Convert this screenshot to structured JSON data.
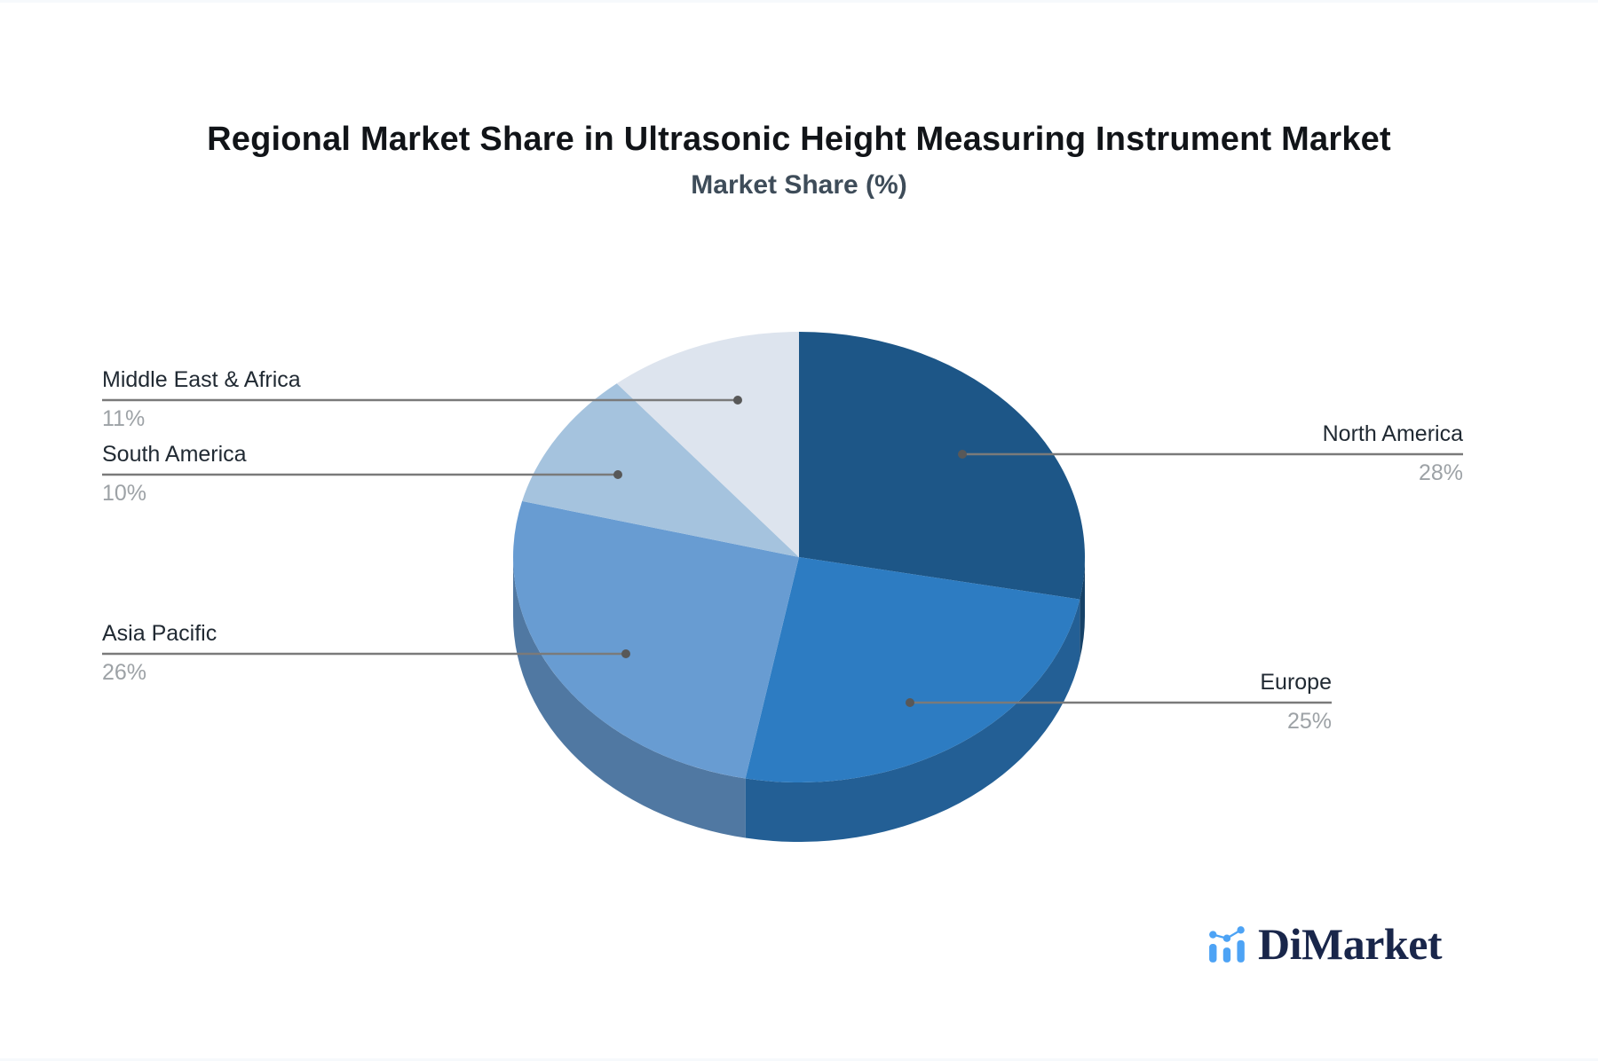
{
  "header": {
    "title": "Regional Market Share in Ultrasonic Height Measuring Instrument Market",
    "subtitle": "Market Share (%)"
  },
  "chart_data": {
    "type": "pie",
    "title": "Regional Market Share in Ultrasonic Height Measuring Instrument Market",
    "subtitle": "Market Share (%)",
    "unit": "%",
    "style": "3d",
    "start_angle": "12-oclock-clockwise",
    "legend_position": "connector-labels",
    "slices": [
      {
        "label": "North America",
        "value": 28,
        "pct_label": "28%",
        "color": "#1d5687"
      },
      {
        "label": "Europe",
        "value": 25,
        "pct_label": "25%",
        "color": "#2d7cc2"
      },
      {
        "label": "Asia Pacific",
        "value": 26,
        "pct_label": "26%",
        "color": "#689cd2"
      },
      {
        "label": "South America",
        "value": 10,
        "pct_label": "10%",
        "color": "#a5c3de"
      },
      {
        "label": "Middle East & Africa",
        "value": 11,
        "pct_label": "11%",
        "color": "#dde4ee"
      }
    ],
    "label_text_color": "#212a33",
    "pct_text_color": "#9da2a6",
    "connector_color": "#7a7a7a"
  },
  "branding": {
    "logo_text": "DiMarket",
    "logo_icon": "bar-chart-icon",
    "logo_text_color": "#19264a",
    "logo_icon_color": "#4da3f5"
  }
}
